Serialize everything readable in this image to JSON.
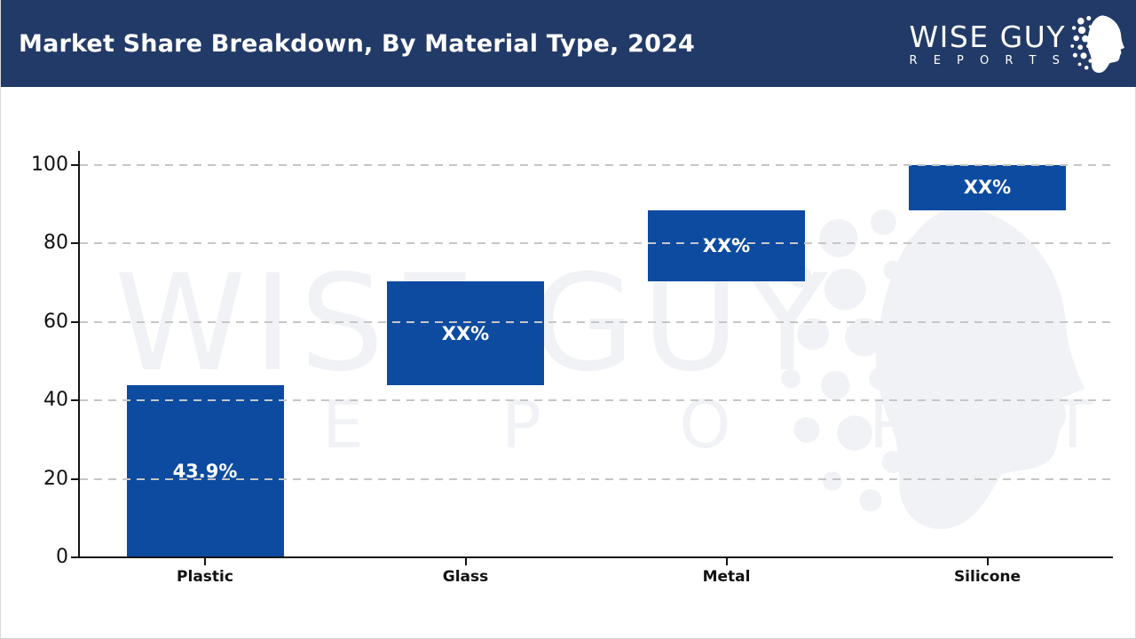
{
  "header": {
    "title": "Market Share Breakdown, By Material Type, 2024",
    "logo": {
      "brand_line1": "WISE GUY",
      "brand_line2": "R E P O R T S"
    }
  },
  "watermark": {
    "line1": "WISE GUY",
    "line2": "R E P O R T S"
  },
  "colors": {
    "header_bg": "#223A67",
    "bar": "#0C4BA0",
    "bar_label": "#FFFFFF",
    "gridline": "#C6C6C6",
    "axis": "#141414",
    "watermark": "#F1F2F6"
  },
  "chart_data": {
    "type": "bar",
    "subtype": "waterfall",
    "title": "Market Share Breakdown, By Material Type, 2024",
    "categories": [
      "Plastic",
      "Glass",
      "Metal",
      "Silicone"
    ],
    "segments": [
      {
        "category": "Plastic",
        "start": 0,
        "end": 43.9,
        "label": "43.9%"
      },
      {
        "category": "Glass",
        "start": 43.9,
        "end": 70.3,
        "label": "XX%"
      },
      {
        "category": "Metal",
        "start": 70.3,
        "end": 88.5,
        "label": "XX%"
      },
      {
        "category": "Silicone",
        "start": 88.5,
        "end": 100,
        "label": "XX%"
      }
    ],
    "ylim": [
      0,
      100
    ],
    "yticks": [
      0,
      20,
      40,
      60,
      80,
      100
    ],
    "xlabel": "",
    "ylabel": "",
    "grid": "horizontal-dashed",
    "legend": "none"
  }
}
